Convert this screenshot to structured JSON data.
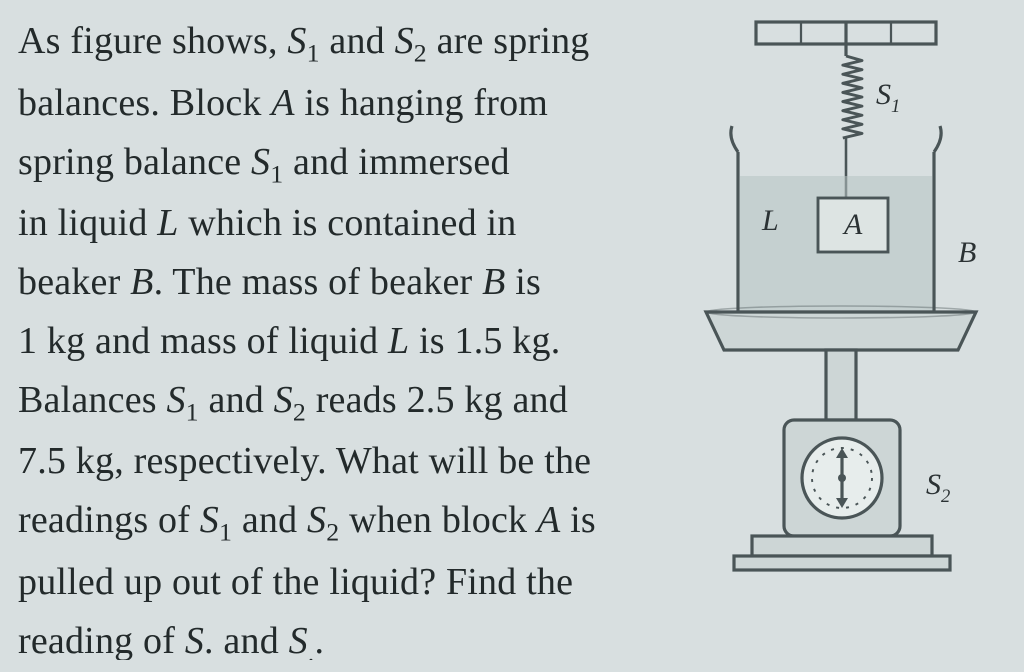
{
  "problem": {
    "line1a": "As figure shows, ",
    "var_S1": "S",
    "sub1": "1",
    "line1b": " and ",
    "var_S2": "S",
    "sub2": "2",
    "line1c": " are spring",
    "line2a": "balances. Block ",
    "var_A": "A",
    "line2b": " is hanging from",
    "line3a": "spring balance ",
    "line3b": " and immersed",
    "line4a": "in liquid ",
    "var_L": "L",
    "line4b": " which is contained in",
    "line5a": "beaker ",
    "var_B": "B",
    "line5b": ". The mass of beaker ",
    "line5c": " is",
    "line6a": "1 kg and mass of liquid ",
    "line6b": " is 1.5 kg.",
    "line7a": "Balances ",
    "line7b": " reads 2.5 kg and",
    "line8": "7.5 kg, respectively. What will be the",
    "line9a": "readings of ",
    "line9b": " when block ",
    "line9c": " is",
    "line10": "pulled up out of the liquid? Find the",
    "line11a": "reading of ",
    "line11b": "."
  },
  "figure": {
    "labels": {
      "S1": "S",
      "S1_sub": "1",
      "S2": "S",
      "S2_sub": "2",
      "L": "L",
      "A": "A",
      "B": "B"
    },
    "colors": {
      "stroke": "#4a5557",
      "fill_light": "#cdd6d6",
      "fill_liquid": "#b7c2c2",
      "fill_block": "#dde4e3",
      "text": "#2b3234"
    },
    "stroke_width": 3.2,
    "font_family": "Times New Roman",
    "label_font_size": 30
  }
}
